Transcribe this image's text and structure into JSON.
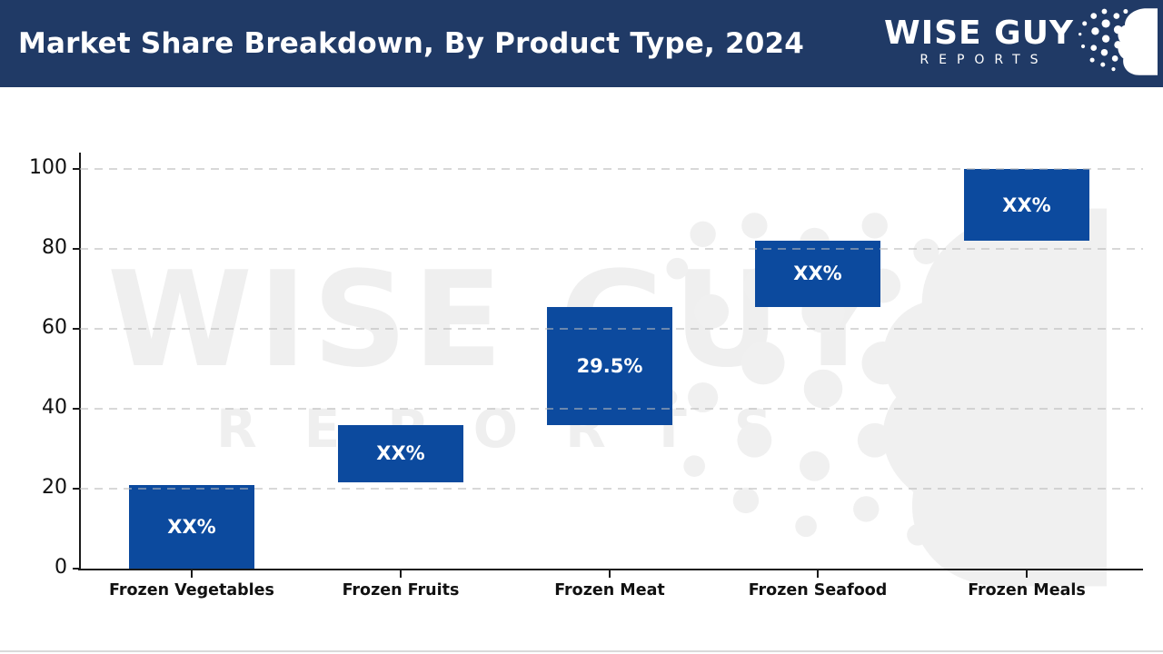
{
  "header": {
    "title": "Market Share Breakdown, By Product Type, 2024",
    "bg_color": "#203A66",
    "logo": {
      "line1": "WISE GUY",
      "line2": "REPORTS"
    }
  },
  "watermark": {
    "line1": "WISE GUY",
    "line2": "REPORTS"
  },
  "chart_data": {
    "type": "bar",
    "subtype": "floating-waterfall",
    "title": "Market Share Breakdown, By Product Type, 2024",
    "categories": [
      "Frozen Vegetables",
      "Frozen Fruits",
      "Frozen Meat",
      "Frozen Seafood",
      "Frozen Meals"
    ],
    "segments": [
      {
        "category": "Frozen Vegetables",
        "bottom": 0,
        "top": 21,
        "value": 21,
        "label": "XX%"
      },
      {
        "category": "Frozen Fruits",
        "bottom": 21.5,
        "top": 36,
        "value": 14.5,
        "label": "XX%"
      },
      {
        "category": "Frozen Meat",
        "bottom": 36,
        "top": 65.5,
        "value": 29.5,
        "label": "29.5%"
      },
      {
        "category": "Frozen Seafood",
        "bottom": 65.5,
        "top": 82,
        "value": 16.5,
        "label": "XX%"
      },
      {
        "category": "Frozen Meals",
        "bottom": 82,
        "top": 100,
        "value": 18,
        "label": "XX%"
      }
    ],
    "y_ticks": [
      0,
      20,
      40,
      60,
      80,
      100
    ],
    "ylim": [
      0,
      105
    ],
    "xlabel": "",
    "ylabel": "",
    "bar_color": "#0C4A9E",
    "grid": "dashed horizontal, drawn over bars",
    "legend": "none"
  }
}
